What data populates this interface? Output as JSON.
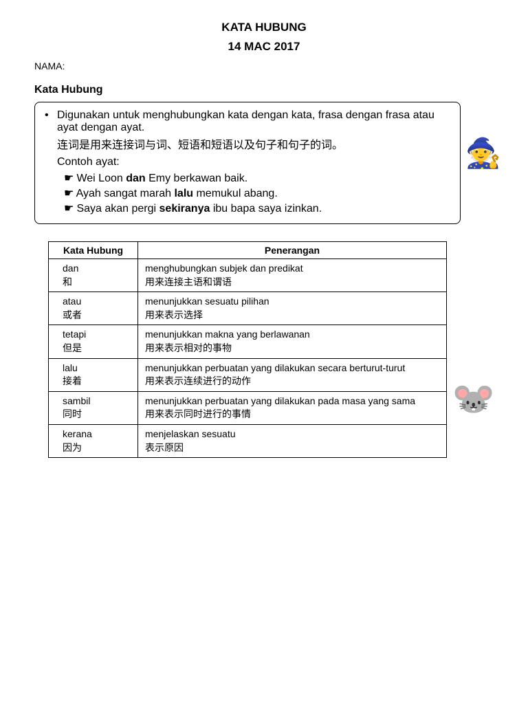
{
  "header": {
    "title": "KATA HUBUNG",
    "date": "14 MAC 2017"
  },
  "nama_label": "NAMA:",
  "section_title": "Kata Hubung",
  "info": {
    "main_ms": "Digunakan untuk menghubungkan kata dengan kata, frasa dengan frasa atau ayat dengan ayat.",
    "main_cn": "连词是用来连接词与词、短语和短语以及句子和句子的词。",
    "contoh_label": "Contoh ayat:",
    "examples": [
      {
        "pre": "Wei Loon ",
        "bold": "dan",
        "post": " Emy berkawan baik."
      },
      {
        "pre": "Ayah sangat marah ",
        "bold": "lalu",
        "post": " memukul abang."
      },
      {
        "pre": "Saya akan pergi ",
        "bold": "sekiranya",
        "post": " ibu bapa saya izinkan."
      }
    ]
  },
  "table": {
    "headers": [
      "Kata Hubung",
      "Penerangan"
    ],
    "rows": [
      {
        "word_ms": "dan",
        "word_cn": "和",
        "desc_ms": "menghubungkan subjek dan predikat",
        "desc_cn": "用来连接主语和谓语"
      },
      {
        "word_ms": "atau",
        "word_cn": "或者",
        "desc_ms": "menunjukkan sesuatu pilihan",
        "desc_cn": "用来表示选择"
      },
      {
        "word_ms": "tetapi",
        "word_cn": "但是",
        "desc_ms": "menunjukkan makna yang berlawanan",
        "desc_cn": "用来表示相对的事物"
      },
      {
        "word_ms": "lalu",
        "word_cn": "接着",
        "desc_ms": "menunjukkan perbuatan yang dilakukan secara berturut-turut",
        "desc_cn": "用来表示连续进行的动作"
      },
      {
        "word_ms": "sambil",
        "word_cn": "同时",
        "desc_ms": "menunjukkan perbuatan yang dilakukan pada masa yang sama",
        "desc_cn": "用来表示同时进行的事情"
      },
      {
        "word_ms": "kerana",
        "word_cn": "因为",
        "desc_ms": "menjelaskan sesuatu",
        "desc_cn": "表示原因"
      }
    ]
  },
  "icons": {
    "wizard": "🧙",
    "mouse": "🐭",
    "bullet": "•",
    "pointer": "☛"
  }
}
